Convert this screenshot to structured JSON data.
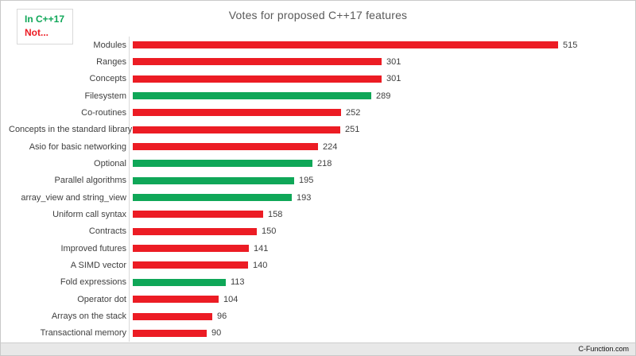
{
  "title": "Votes for proposed C++17 features",
  "legend": {
    "in_label": "In C++17",
    "not_label": "Not..."
  },
  "watermark": "C-Function.com",
  "colors": {
    "in_green": "#0fa758",
    "not_red": "#ec1c24",
    "title_gray": "#595959",
    "axis_line": "#d9d9d9"
  },
  "chart_data": {
    "type": "bar",
    "orientation": "horizontal",
    "title": "Votes for proposed C++17 features",
    "xlabel": "",
    "ylabel": "",
    "grid": false,
    "legend_position": "top-left",
    "xlim": [
      0,
      555
    ],
    "categories": [
      "Modules",
      "Ranges",
      "Concepts",
      "Filesystem",
      "Co-routines",
      "Concepts in the standard library",
      "Asio for basic networking",
      "Optional",
      "Parallel algorithms",
      "array_view and string_view",
      "Uniform call syntax",
      "Contracts",
      "Improved futures",
      "A SIMD vector",
      "Fold expressions",
      "Operator dot",
      "Arrays on the stack",
      "Transactional memory"
    ],
    "values": [
      515,
      301,
      301,
      289,
      252,
      251,
      224,
      218,
      195,
      193,
      158,
      150,
      141,
      140,
      113,
      104,
      96,
      90
    ],
    "in_cpp17": [
      false,
      false,
      false,
      true,
      false,
      false,
      false,
      true,
      true,
      true,
      false,
      false,
      false,
      false,
      true,
      false,
      false,
      false
    ]
  }
}
